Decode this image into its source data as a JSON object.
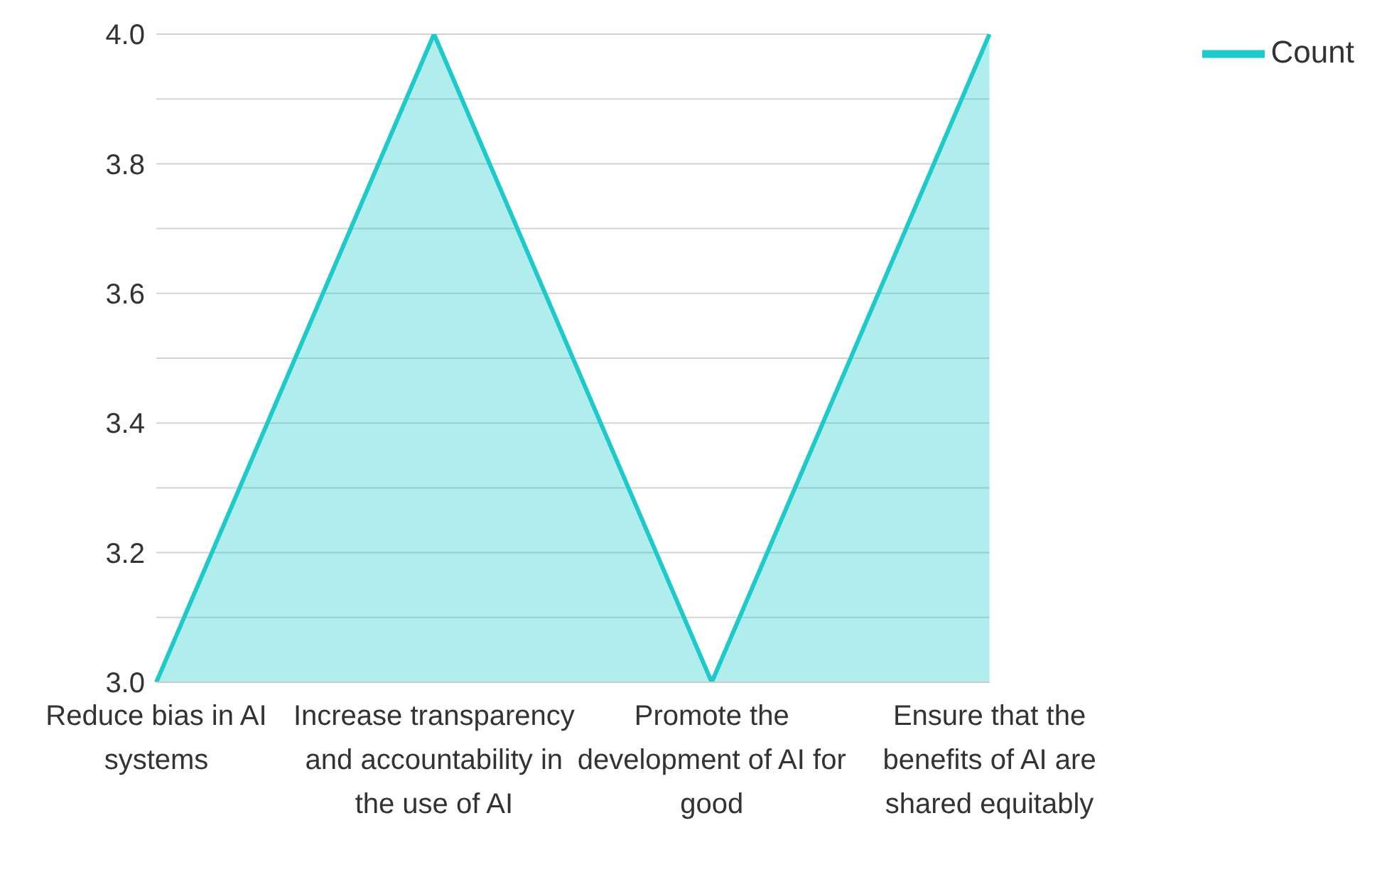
{
  "chart_data": {
    "type": "area",
    "categories": [
      "Reduce bias in AI systems",
      "Increase transparency and accountability in the use of AI",
      "Promote the development of AI for good",
      "Ensure that the benefits of AI are shared equitably"
    ],
    "series": [
      {
        "name": "Count",
        "color": "#1ec9c9",
        "values": [
          3,
          4,
          3,
          4
        ]
      }
    ],
    "ylim": [
      3,
      4
    ],
    "yticks": [
      {
        "value": 3,
        "label": "3.0"
      },
      {
        "value": 3.1,
        "label": null
      },
      {
        "value": 3.2,
        "label": "3.2"
      },
      {
        "value": 3.3,
        "label": null
      },
      {
        "value": 3.4,
        "label": "3.4"
      },
      {
        "value": 3.5,
        "label": null
      },
      {
        "value": 3.6,
        "label": "3.6"
      },
      {
        "value": 3.7,
        "label": null
      },
      {
        "value": 3.8,
        "label": "3.8"
      },
      {
        "value": 3.9,
        "label": null
      },
      {
        "value": 4,
        "label": "4.0"
      }
    ],
    "grid": "y",
    "legend": "top right",
    "marker": "none",
    "line_style": "solid"
  }
}
